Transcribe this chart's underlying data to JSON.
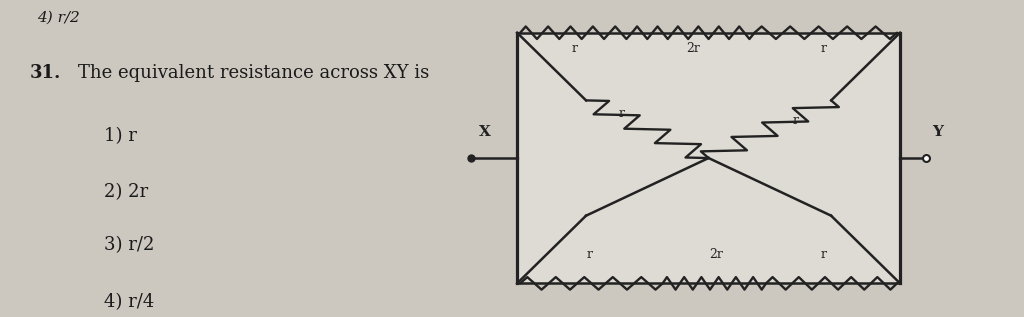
{
  "bg_color": "#ccc8c0",
  "text_color": "#1a1a1a",
  "question_number": "31.",
  "question_text": "The equivalent resistance across XY is",
  "prev_answer": "4) r/2",
  "options": [
    "1) r",
    "2) 2r",
    "3) r/2",
    "4) r/4"
  ],
  "circuit_color": "#222222",
  "circuit_bg": "#dedad4",
  "bx": 0.505,
  "by": 0.1,
  "bw": 0.375,
  "bh": 0.8
}
